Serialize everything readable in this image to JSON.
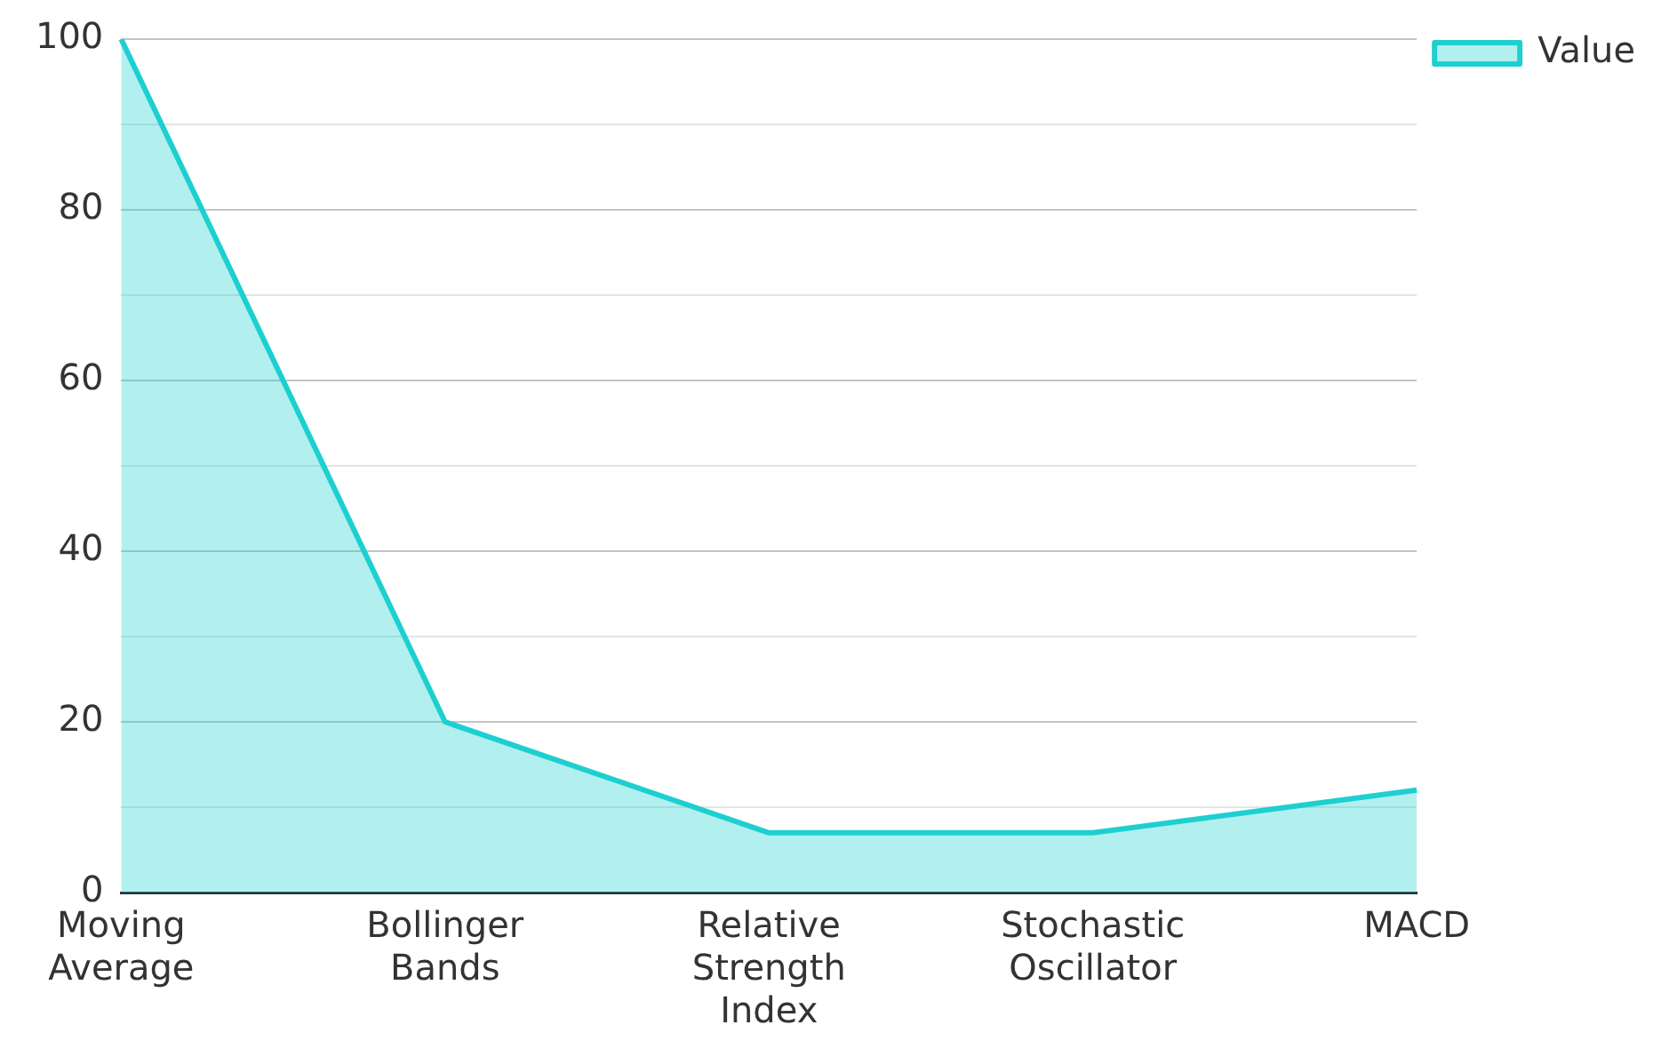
{
  "chart_data": {
    "type": "area",
    "categories": [
      "Moving Average",
      "Bollinger Bands",
      "Relative Strength Index",
      "Stochastic Oscillator",
      "MACD"
    ],
    "series": [
      {
        "name": "Value",
        "color": "#1ecfd0",
        "values": [
          100,
          20,
          7,
          7,
          12
        ]
      }
    ],
    "ylim": [
      0,
      100
    ],
    "yticks": [
      0,
      {
        "value": 10,
        "label": null
      },
      20,
      {
        "value": 30,
        "label": null
      },
      40,
      {
        "value": 50,
        "label": null
      },
      60,
      {
        "value": 70,
        "label": null
      },
      80,
      {
        "value": 90,
        "label": null
      },
      100
    ],
    "grid": "y",
    "legend": "top right"
  }
}
